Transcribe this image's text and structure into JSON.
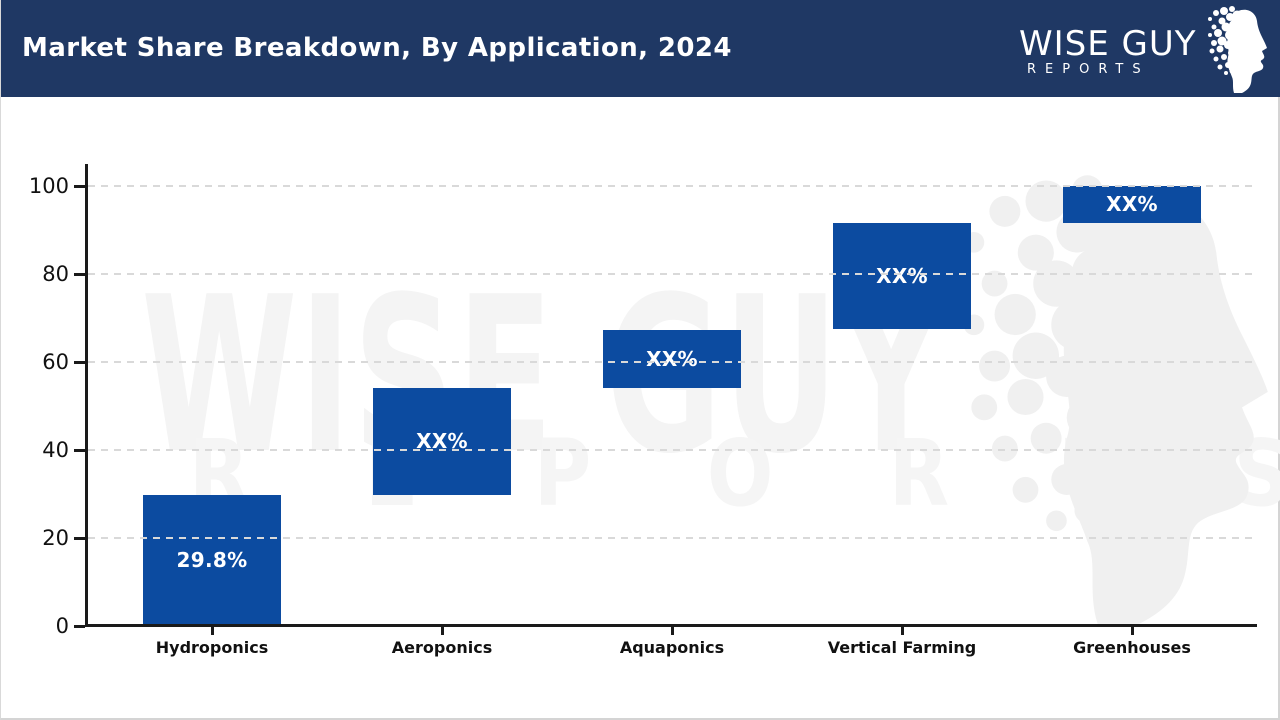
{
  "header": {
    "title": "Market Share Breakdown, By Application, 2024",
    "logo": {
      "line1": "WISE GUY",
      "line2": "REPORTS"
    }
  },
  "watermark": {
    "line1": "WISE GUY",
    "line2": "R E P O R T S"
  },
  "chart_data": {
    "type": "bar",
    "subtype": "floating-waterfall",
    "title": "Market Share Breakdown, By Application, 2024",
    "categories": [
      "Hydroponics",
      "Aeroponics",
      "Aquaponics",
      "Vertical Farming",
      "Greenhouses"
    ],
    "segments": [
      {
        "category": "Hydroponics",
        "start": 0,
        "end": 29.8,
        "label": "29.8%"
      },
      {
        "category": "Aeroponics",
        "start": 29.8,
        "end": 54.1,
        "label": "XX%"
      },
      {
        "category": "Aquaponics",
        "start": 54.1,
        "end": 67.3,
        "label": "XX%"
      },
      {
        "category": "Vertical Farming",
        "start": 67.4,
        "end": 91.6,
        "label": "XX%"
      },
      {
        "category": "Greenhouses",
        "start": 91.6,
        "end": 100,
        "label": "XX%"
      }
    ],
    "increments": [
      29.8,
      24.3,
      13.2,
      24.2,
      8.4
    ],
    "xlabel": "",
    "ylabel": "",
    "yticks": [
      0,
      20,
      40,
      60,
      80,
      100
    ],
    "ylim": [
      0,
      105
    ],
    "grid": "horizontal-dashed",
    "legend": "none",
    "colors": {
      "bar": "#0c4ba0",
      "bar_label": "#ffffff",
      "grid": "#d9d9d9",
      "axis": "#1a1a1a",
      "header_bg": "#1f3864",
      "header_text": "#ffffff",
      "watermark": "#f4f4f4",
      "page_border": "#d4d4d4"
    }
  }
}
